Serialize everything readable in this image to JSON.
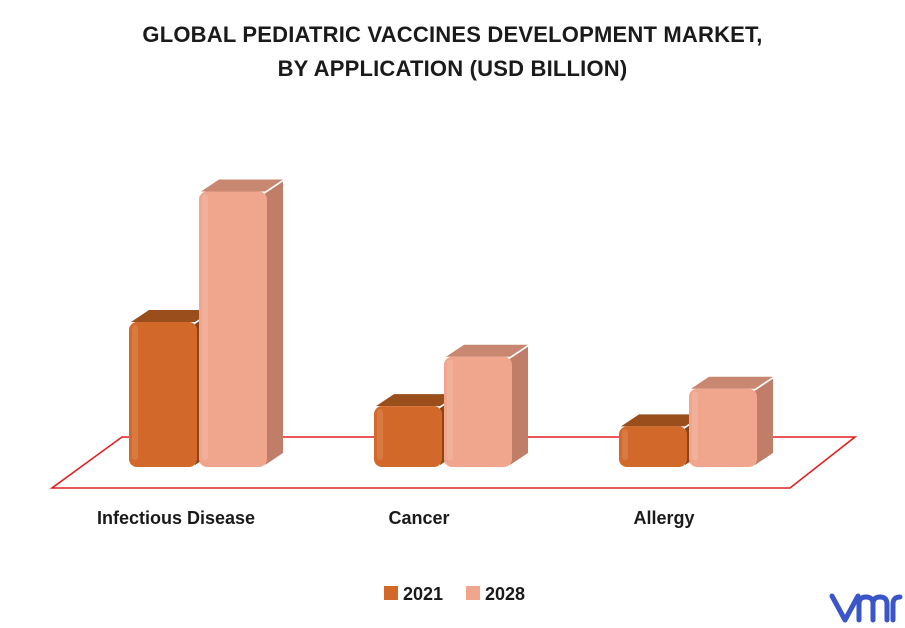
{
  "title_line1": "GLOBAL PEDIATRIC VACCINES DEVELOPMENT MARKET,",
  "title_line2": "BY APPLICATION (USD BILLION)",
  "chart_data": {
    "type": "bar",
    "title": "GLOBAL PEDIATRIC VACCINES DEVELOPMENT MARKET, BY APPLICATION (USD BILLION)",
    "categories": [
      "Infectious Disease",
      "Cancer",
      "Allergy"
    ],
    "series": [
      {
        "name": "2021",
        "values": [
          10.0,
          4.2,
          2.8
        ],
        "color": "#D2692A"
      },
      {
        "name": "2028",
        "values": [
          19.0,
          7.6,
          5.4
        ],
        "color": "#F0A68C"
      }
    ],
    "ylim": [
      0,
      20
    ],
    "grid": false,
    "legend": "bottom-center",
    "style": "3d"
  },
  "colors": {
    "floor_line": "#E02020",
    "logo": "#3A55C8"
  }
}
